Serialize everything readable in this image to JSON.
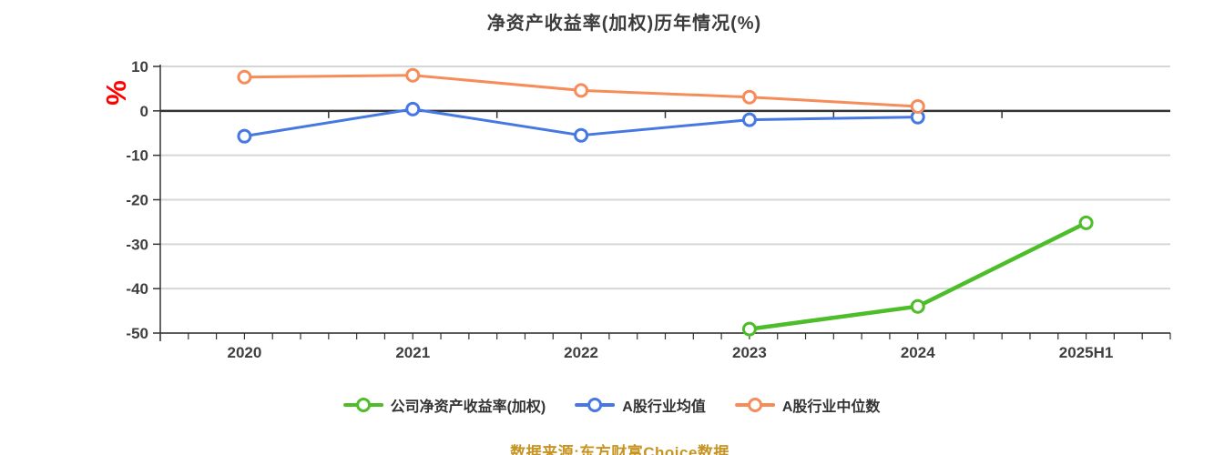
{
  "chart_data": {
    "type": "line",
    "title": "净资产收益率(加权)历年情况(%)",
    "unit_label": "%",
    "unit_label_color": "#ff0000",
    "watermark": "数据来源:东方财富Choice数据",
    "watermark_color": "#c79422",
    "categories": [
      "2020",
      "2021",
      "2022",
      "2023",
      "2024",
      "2025H1"
    ],
    "series": [
      {
        "name": "公司净资产收益率(加权)",
        "color": "#4dbd2a",
        "line_width": 4.5,
        "values": [
          null,
          null,
          null,
          -49.1,
          -44.0,
          -25.2
        ]
      },
      {
        "name": "A股行业均值",
        "color": "#4678e2",
        "line_width": 3,
        "values": [
          -5.7,
          0.4,
          -5.5,
          -2.0,
          -1.4,
          null
        ]
      },
      {
        "name": "A股行业中位数",
        "color": "#f68c5a",
        "line_width": 3,
        "values": [
          7.6,
          8.0,
          4.6,
          3.1,
          1.0,
          null
        ]
      }
    ],
    "ylim": [
      -50,
      10
    ],
    "y_ticks": [
      10,
      0,
      -10,
      -20,
      -30,
      -40,
      -50
    ],
    "grid": true,
    "legend_position": "bottom",
    "marker_style": "hollow-circle",
    "axis_color": "#333333",
    "grid_color": "#d6d6d6",
    "label_color": "#3f3f3f"
  }
}
